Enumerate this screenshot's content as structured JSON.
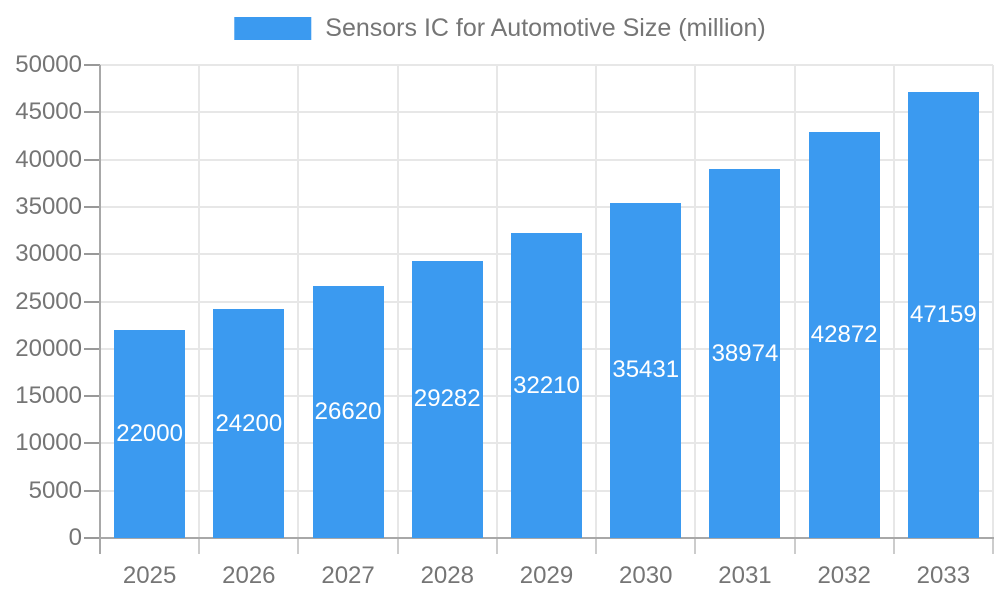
{
  "legend": {
    "label": "Sensors IC for Automotive Size (million)"
  },
  "chart_data": {
    "type": "bar",
    "title": "",
    "series_name": "Sensors IC for Automotive Size (million)",
    "categories": [
      "2025",
      "2026",
      "2027",
      "2028",
      "2029",
      "2030",
      "2031",
      "2032",
      "2033"
    ],
    "values": [
      22000,
      24200,
      26620,
      29282,
      32210,
      35431,
      38974,
      42872,
      47159
    ],
    "yticks": [
      0,
      5000,
      10000,
      15000,
      20000,
      25000,
      30000,
      35000,
      40000,
      45000,
      50000
    ],
    "ylim": [
      0,
      50000
    ],
    "xlabel": "",
    "ylabel": "",
    "grid": true,
    "legend_position": "top-center",
    "value_labels": "inside-center",
    "colors": {
      "bar": "#3b9af0",
      "text": "#757575",
      "grid": "#e7e7e7",
      "axis": "#a8a8a8",
      "tick": "#999999",
      "xtick": "#cccccc",
      "value_label": "#ffffff"
    }
  }
}
